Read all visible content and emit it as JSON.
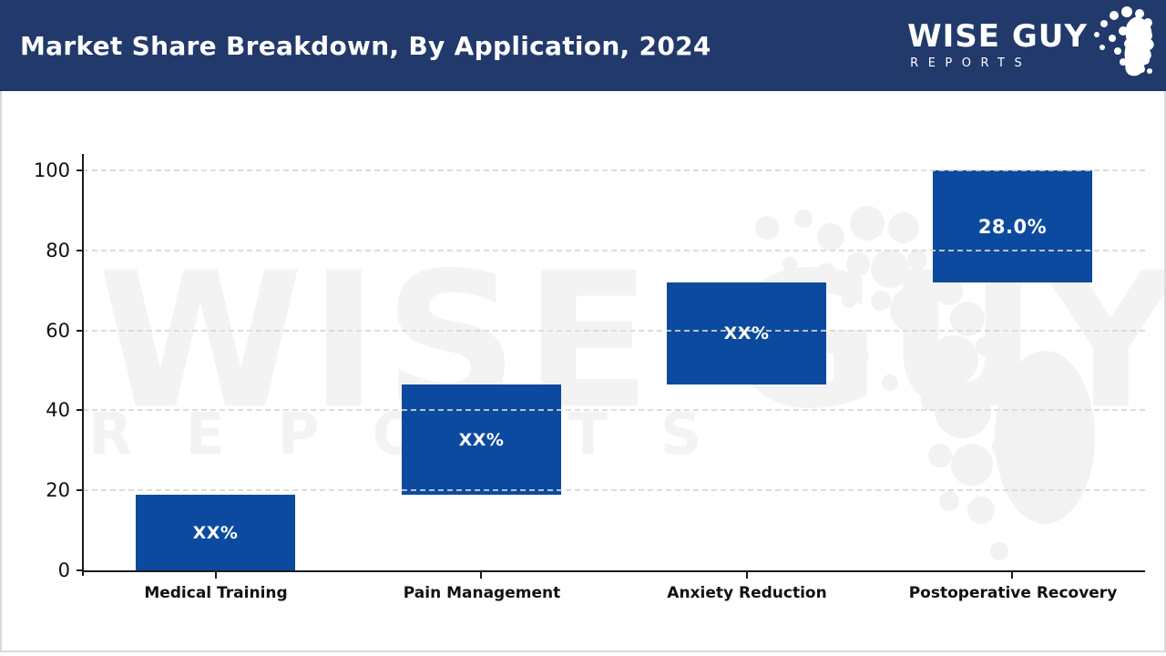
{
  "header": {
    "title": "Market Share Breakdown, By Application, 2024",
    "logo": {
      "line1": "WISE GUY",
      "line2": "REPORTS"
    }
  },
  "watermark": {
    "line1": "WISE GUY",
    "line2": "REPORTS"
  },
  "chart_data": {
    "type": "bar",
    "subtype": "floating-waterfall",
    "title": "Market Share Breakdown, By Application, 2024",
    "categories": [
      "Medical Training",
      "Pain Management",
      "Anxiety Reduction",
      "Postoperative Recovery"
    ],
    "segments": [
      {
        "category": "Medical Training",
        "start": 0,
        "end": 19,
        "value_label": "XX%"
      },
      {
        "category": "Pain Management",
        "start": 19,
        "end": 46.5,
        "value_label": "XX%"
      },
      {
        "category": "Anxiety Reduction",
        "start": 46.5,
        "end": 72,
        "value_label": "XX%"
      },
      {
        "category": "Postoperative Recovery",
        "start": 72,
        "end": 100,
        "value_label": "28.0%",
        "value": 28.0
      }
    ],
    "ylim": [
      0,
      100
    ],
    "yticks": [
      0,
      20,
      40,
      60,
      80,
      100
    ],
    "xlabel": "",
    "ylabel": "",
    "grid": "horizontal-dashed",
    "legend": "none",
    "bar_color": "#0b4a9e",
    "bar_label_color": "#ffffff",
    "header_bg_color": "#21396b",
    "axis_color": "#1a1a1a"
  }
}
